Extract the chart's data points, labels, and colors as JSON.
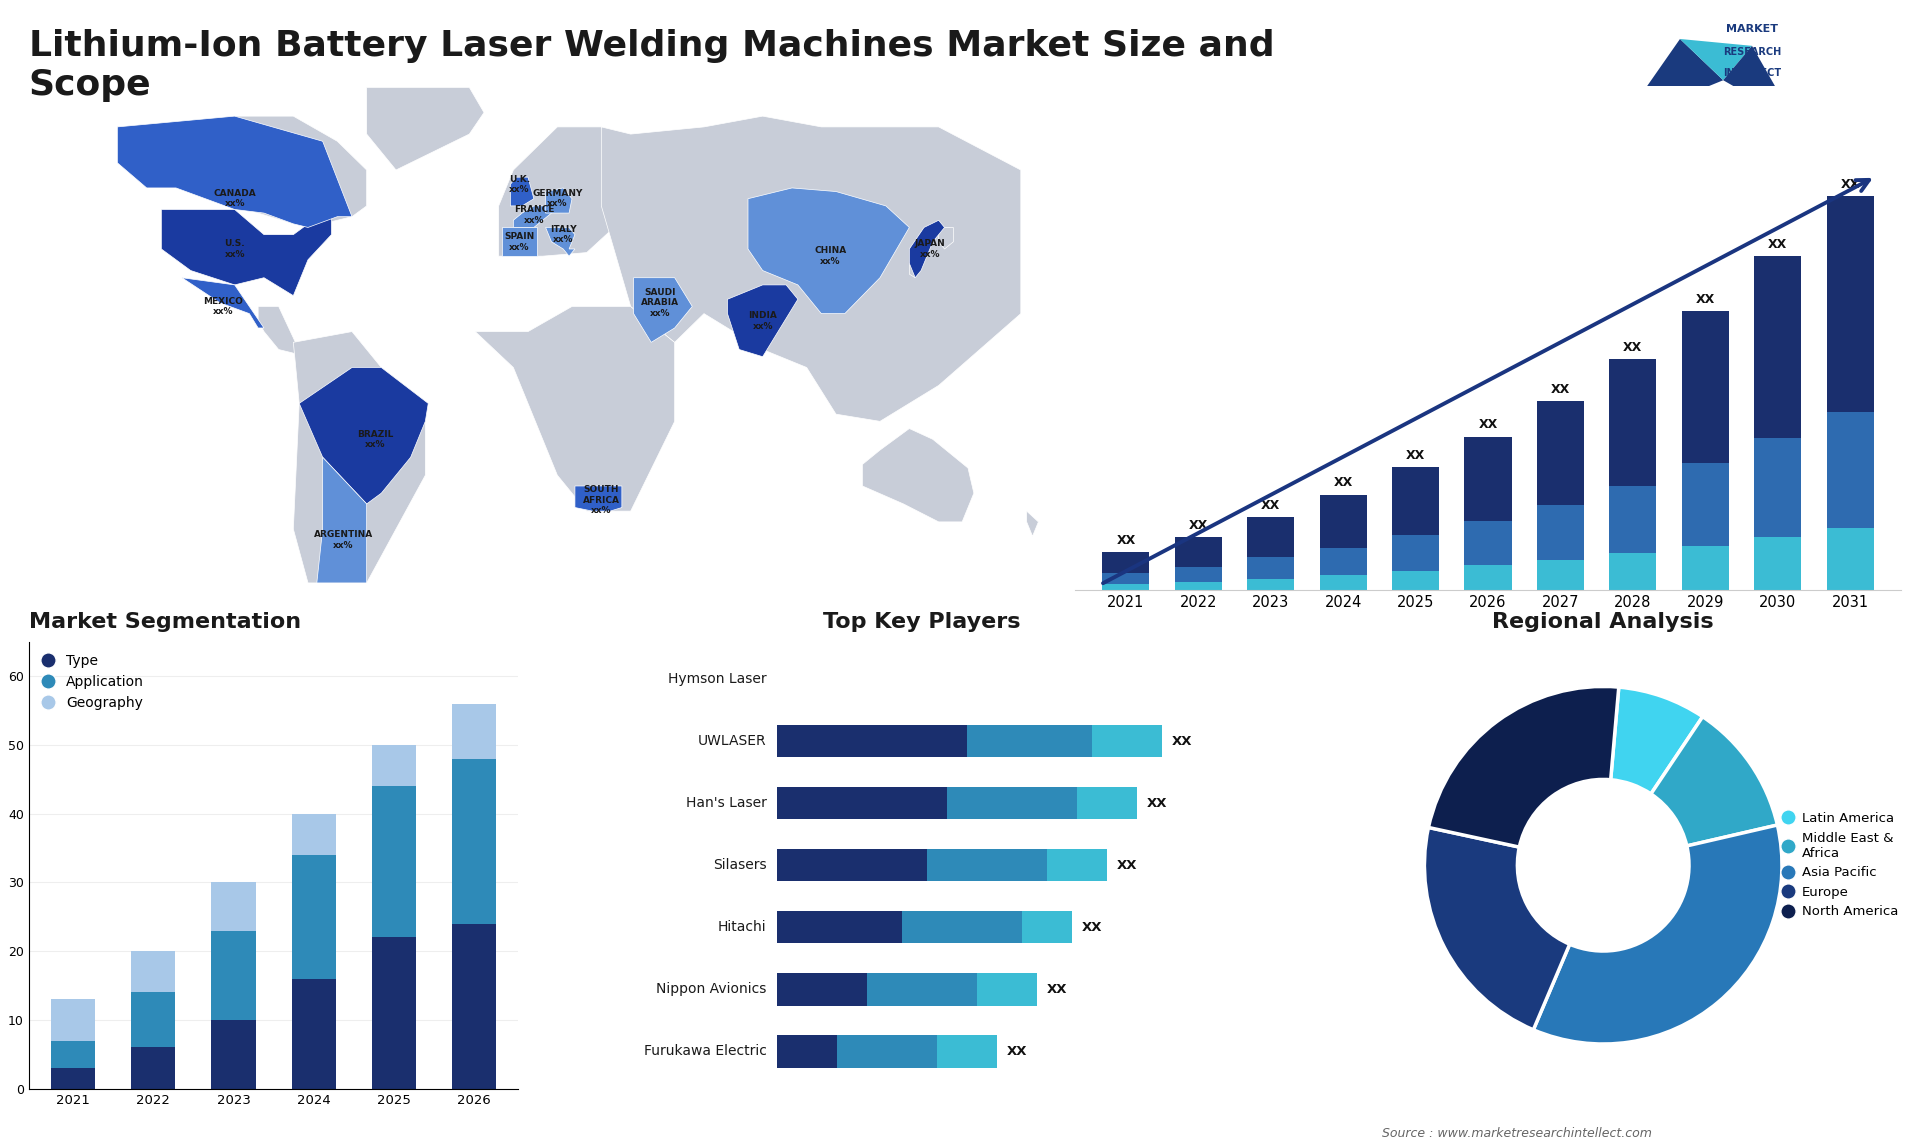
{
  "title": "Lithium-Ion Battery Laser Welding Machines Market Size and\nScope",
  "title_fontsize": 26,
  "background_color": "#ffffff",
  "bar_chart_years": [
    2021,
    2022,
    2023,
    2024,
    2025,
    2026,
    2027,
    2028,
    2029,
    2030,
    2031
  ],
  "bar_chart_seg1": [
    1.0,
    1.4,
    1.9,
    2.5,
    3.2,
    4.0,
    4.9,
    6.0,
    7.2,
    8.6,
    10.2
  ],
  "bar_chart_seg2": [
    0.5,
    0.7,
    1.0,
    1.3,
    1.7,
    2.1,
    2.6,
    3.2,
    3.9,
    4.7,
    5.5
  ],
  "bar_chart_seg3": [
    0.3,
    0.4,
    0.55,
    0.72,
    0.93,
    1.17,
    1.44,
    1.75,
    2.1,
    2.5,
    2.95
  ],
  "bar_colors_top": "#1a2f6e",
  "bar_colors_mid": "#2e6bb0",
  "bar_colors_bot": "#3bbcd4",
  "segmentation_years": [
    "2021",
    "2022",
    "2023",
    "2024",
    "2025",
    "2026"
  ],
  "seg_type": [
    3,
    6,
    10,
    16,
    22,
    24
  ],
  "seg_application": [
    4,
    8,
    13,
    18,
    22,
    24
  ],
  "seg_geography": [
    6,
    6,
    7,
    6,
    6,
    8
  ],
  "seg_color_type": "#1a2f6e",
  "seg_color_application": "#2e8ab8",
  "seg_color_geography": "#a8c8e8",
  "seg_title": "Market Segmentation",
  "seg_legend": [
    "Type",
    "Application",
    "Geography"
  ],
  "players": [
    "Hymson Laser",
    "UWLASER",
    "Han's Laser",
    "Silasers",
    "Hitachi",
    "Nippon Avionics",
    "Furukawa Electric"
  ],
  "player_seg1": [
    0.0,
    0.38,
    0.34,
    0.3,
    0.25,
    0.18,
    0.12
  ],
  "player_seg2": [
    0.0,
    0.25,
    0.26,
    0.24,
    0.24,
    0.22,
    0.2
  ],
  "player_seg3": [
    0.0,
    0.14,
    0.12,
    0.12,
    0.1,
    0.12,
    0.12
  ],
  "player_colors_dark": "#1a2f6e",
  "player_colors_mid": "#2e8ab8",
  "player_colors_light": "#3bbcd4",
  "players_title": "Top Key Players",
  "pie_slices": [
    8,
    12,
    35,
    22,
    23
  ],
  "pie_colors": [
    "#40d4f0",
    "#30a8c8",
    "#2878b8",
    "#1a3a7e",
    "#0d1f4e"
  ],
  "pie_labels": [
    "Latin America",
    "Middle East &\nAfrica",
    "Asia Pacific",
    "Europe",
    "North America"
  ],
  "pie_title": "Regional Analysis",
  "source_text": "Source : www.marketresearchintellect.com"
}
